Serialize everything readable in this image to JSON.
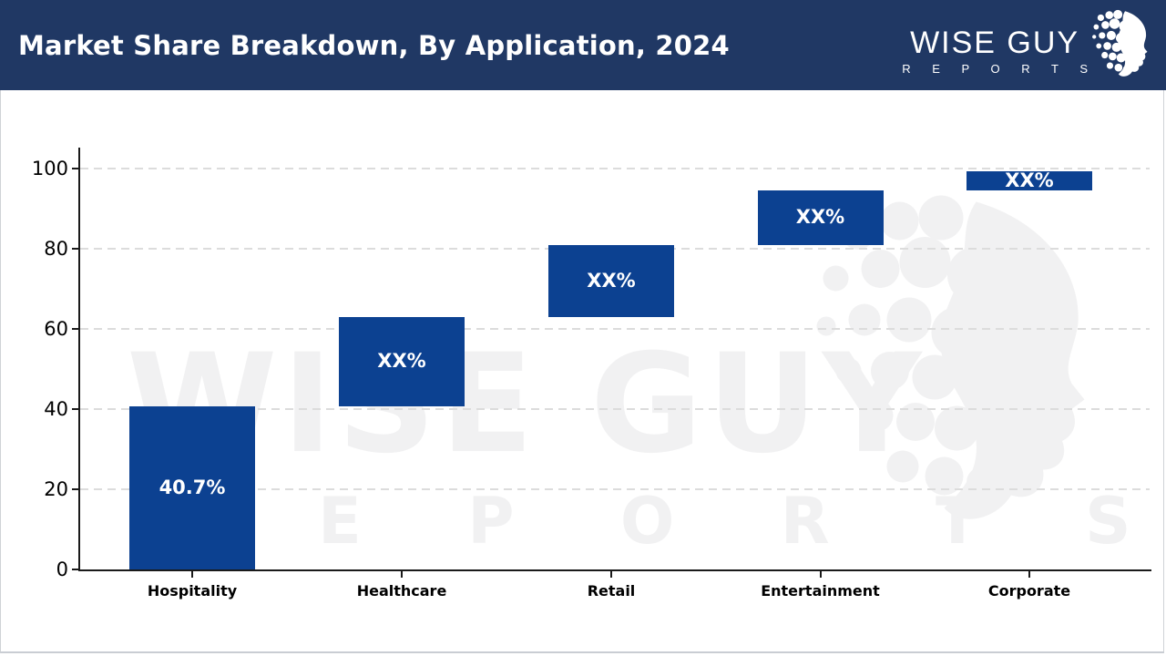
{
  "header": {
    "title": "Market Share Breakdown, By Application, 2024",
    "bg_color": "#203864",
    "logo": {
      "line1": "WISE GUY",
      "line2": "REPORTS"
    }
  },
  "watermark": {
    "line1": "WISE GUY",
    "line2": "REPORTS"
  },
  "chart_data": {
    "type": "bar",
    "subtype": "waterfall-stacked-breakdown",
    "title": "Market Share Breakdown, By Application, 2024",
    "categories": [
      "Hospitality",
      "Healthcare",
      "Retail",
      "Entertainment",
      "Corporate"
    ],
    "segments": [
      {
        "category": "Hospitality",
        "start": 0,
        "end": 40.7,
        "label": "40.7%"
      },
      {
        "category": "Healthcare",
        "start": 40.7,
        "end": 63.0,
        "label": "XX%"
      },
      {
        "category": "Retail",
        "start": 63.0,
        "end": 81.0,
        "label": "XX%"
      },
      {
        "category": "Entertainment",
        "start": 81.0,
        "end": 94.5,
        "label": "XX%"
      },
      {
        "category": "Corporate",
        "start": 94.5,
        "end": 99.3,
        "label": "XX%"
      }
    ],
    "y_ticks": [
      0,
      20,
      40,
      60,
      80,
      100
    ],
    "ylim": [
      0,
      105
    ],
    "xlabel": "",
    "ylabel": "",
    "grid": "horizontal-dashed",
    "legend": "none",
    "bar_color": "#0c4191",
    "note": "values other than Hospitality are masked as XX% in source image"
  }
}
